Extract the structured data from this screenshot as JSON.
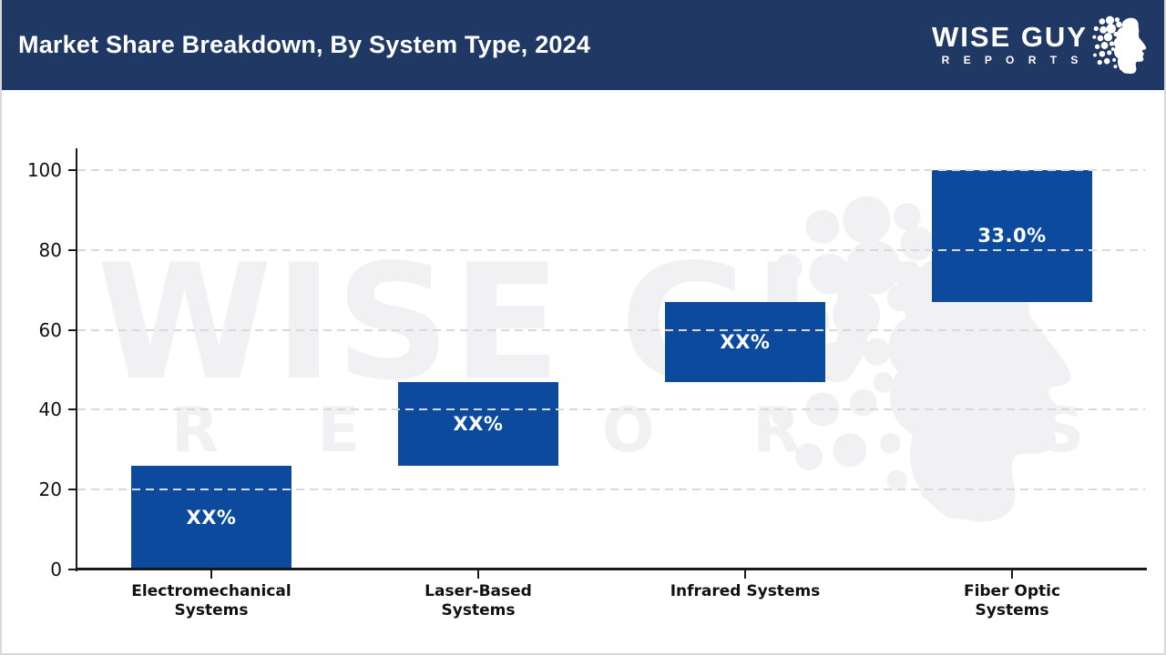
{
  "header": {
    "title": "Market Share Breakdown, By System Type, 2024",
    "logo": {
      "line1": "WISE GUY",
      "line2": "R E P O R T S"
    }
  },
  "watermark": {
    "line1": "WISE GUY",
    "line2": "R E P O R T S"
  },
  "chart_data": {
    "type": "bar",
    "subtype": "floating-waterfall-bars",
    "title": "Market Share Breakdown, By System Type, 2024",
    "categories": [
      "Electromechanical Systems",
      "Laser-Based Systems",
      "Infrared Systems",
      "Fiber Optic Systems"
    ],
    "category_lines": [
      [
        "Electromechanical",
        "Systems"
      ],
      [
        "Laser-Based",
        "Systems"
      ],
      [
        "Infrared Systems"
      ],
      [
        "Fiber Optic",
        "Systems"
      ]
    ],
    "series": [
      {
        "name": "Market Share (%)",
        "segment_start": [
          0,
          26,
          47,
          67
        ],
        "segment_end": [
          26,
          47,
          67,
          100
        ],
        "values_estimated": [
          26,
          21,
          20,
          33
        ],
        "bar_labels": [
          "XX%",
          "XX%",
          "XX%",
          "33.0%"
        ]
      }
    ],
    "xlabel": "",
    "ylabel": "",
    "ylim": [
      0,
      105
    ],
    "yticks": [
      0,
      20,
      40,
      60,
      80,
      100
    ],
    "grid": "horizontal dashed gridlines drawn over bars",
    "legend": "none"
  },
  "colors": {
    "header_bg": "#203864",
    "bar_fill": "#0b4a9d",
    "bar_label_text": "#ffffff",
    "grid_line": "#d9d9d9",
    "axis_line": "#1a1a1a",
    "tick_label_text": "#111111",
    "watermark": "#f1f1f4",
    "page_border": "#d9d9d9",
    "title_text": "#ffffff"
  }
}
